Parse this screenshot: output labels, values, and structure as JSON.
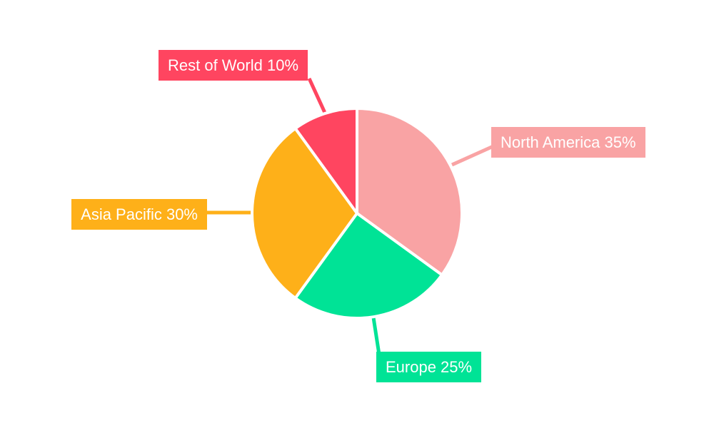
{
  "page": {
    "background": "#ffffff"
  },
  "chart_data": {
    "type": "pie",
    "direction": "clockwise",
    "start_angle_deg": 0,
    "legend": "none",
    "background": "#ffffff",
    "slice_stroke_color": "#ffffff",
    "slice_stroke_width": 4,
    "label_text_color": "#ffffff",
    "categories": [
      "North America",
      "Europe",
      "Asia Pacific",
      "Rest of World"
    ],
    "values": [
      35,
      25,
      30,
      10
    ],
    "slices": [
      {
        "label": "North America",
        "value": 35,
        "display": "North America 35%",
        "color": "#F9A3A4"
      },
      {
        "label": "Europe",
        "value": 25,
        "display": "Europe 25%",
        "color": "#00E396"
      },
      {
        "label": "Asia Pacific",
        "value": 30,
        "display": "Asia Pacific 30%",
        "color": "#FEB019"
      },
      {
        "label": "Rest of World",
        "value": 10,
        "display": "Rest of World 10%",
        "color": "#FF4560"
      }
    ]
  }
}
